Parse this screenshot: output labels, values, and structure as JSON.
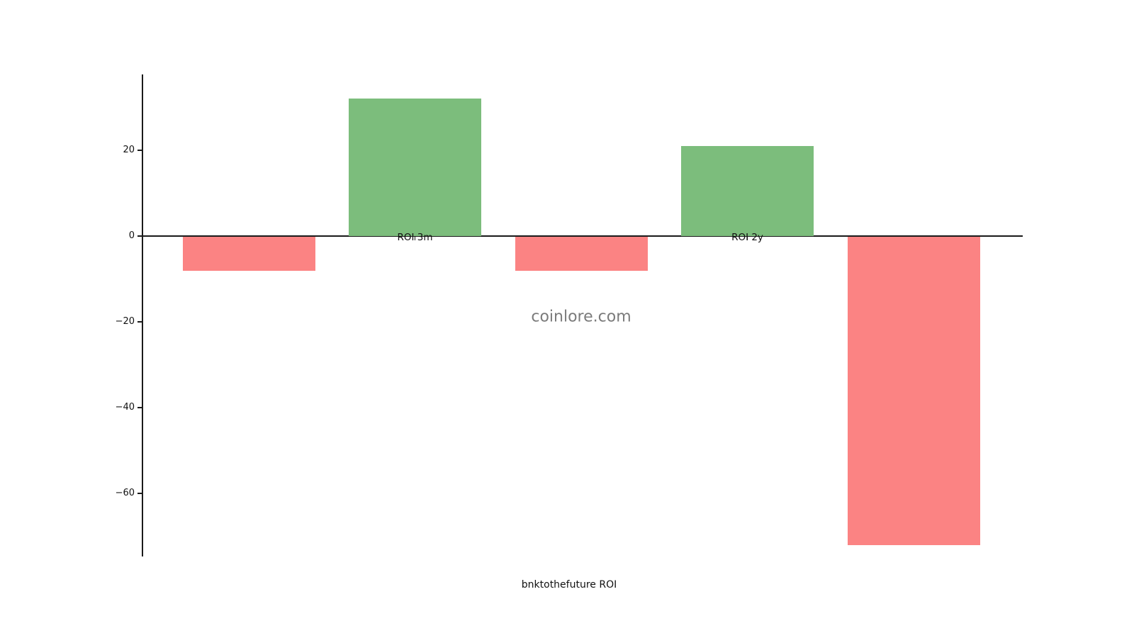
{
  "chart_data": {
    "type": "bar",
    "title": "bnktothefuture ROI",
    "watermark": "coinlore.com",
    "categories": [
      "",
      "ROI 3m",
      "",
      "ROI 2y",
      ""
    ],
    "values": [
      -8,
      32,
      -8,
      21,
      -72
    ],
    "labeled_bar_indexes": [
      1,
      3
    ],
    "yticks": [
      20,
      0,
      -20,
      -40,
      -60
    ],
    "ytick_labels": [
      "20",
      "0",
      "−20",
      "−40",
      "−60"
    ],
    "ylim": [
      -75,
      38
    ],
    "xlabel": "",
    "ylabel": "",
    "grid": false,
    "legend": "none",
    "colors": {
      "positive_bar": "#7cbd7c",
      "negative_bar": "#fb8383",
      "axis": "#1a1a1a",
      "tick_text": "#111111",
      "watermark_text": "#7b7b7b",
      "background": "#ffffff"
    }
  }
}
